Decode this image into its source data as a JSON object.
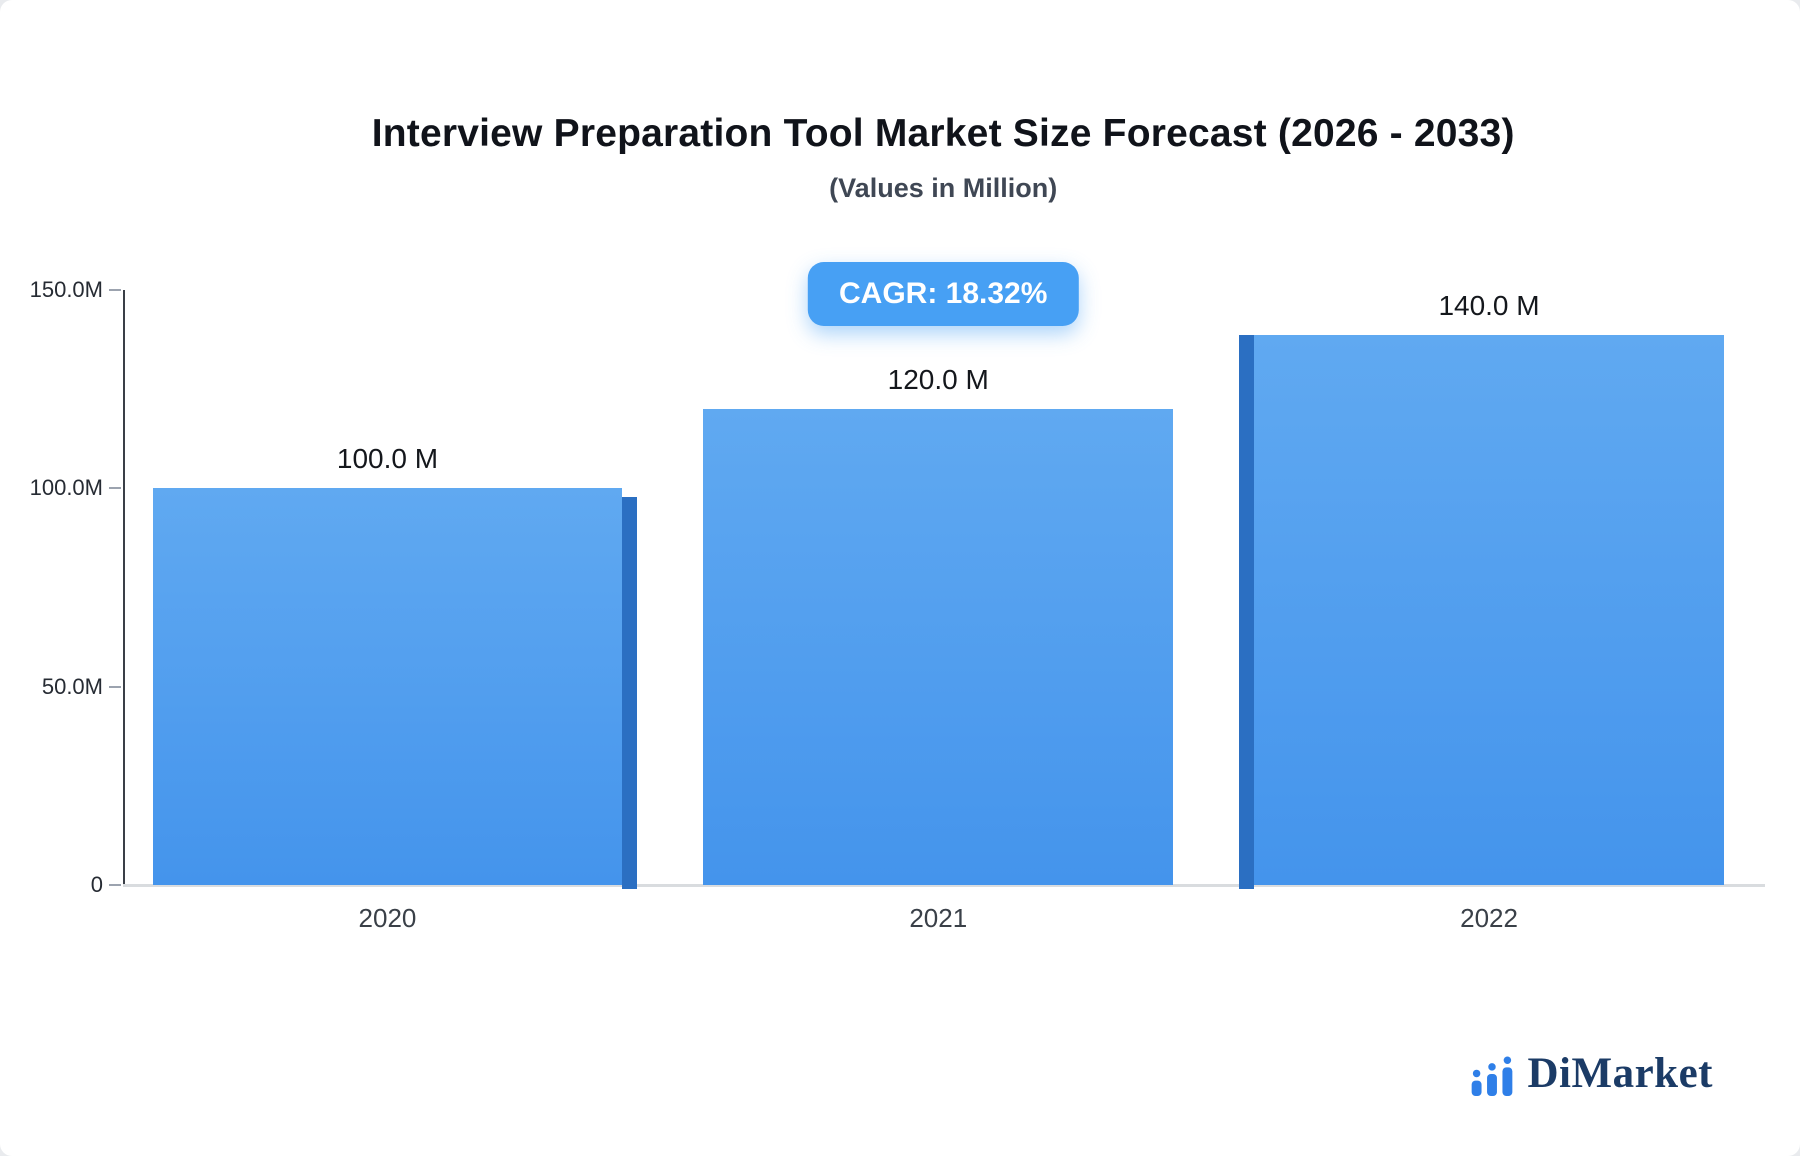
{
  "title": "Interview Preparation Tool Market Size Forecast (2026 - 2033)",
  "subtitle": "(Values in Million)",
  "badge": {
    "label": "CAGR: 18.32%",
    "color": "#47a0f4"
  },
  "logo": {
    "text": "DiMarket",
    "icon": "bar-chart-icon",
    "text_color": "#1b3b66",
    "icon_color": "#2f7fe8"
  },
  "chart_data": {
    "type": "bar",
    "title": "Interview Preparation Tool Market Size Forecast (2026 - 2033)",
    "subtitle": "(Values in Million)",
    "categories": [
      "2020",
      "2021",
      "2022"
    ],
    "values": [
      100,
      120,
      140
    ],
    "value_labels": [
      "100.0 M",
      "120.0 M",
      "140.0 M"
    ],
    "xlabel": "",
    "ylabel": "",
    "ylim": [
      0,
      150
    ],
    "yticks": [
      {
        "value": 150,
        "label": "150.0M"
      },
      {
        "value": 100,
        "label": "100.0M"
      },
      {
        "value": 50,
        "label": "50.0M"
      },
      {
        "value": 0,
        "label": "0"
      }
    ],
    "grid": false,
    "legend": false,
    "bar_color_top": "#60a9f1",
    "bar_color_bottom": "#4494ec",
    "bar_edge_color": "#2b6fc2",
    "shadow_sides": [
      "right",
      "none",
      "left"
    ]
  }
}
